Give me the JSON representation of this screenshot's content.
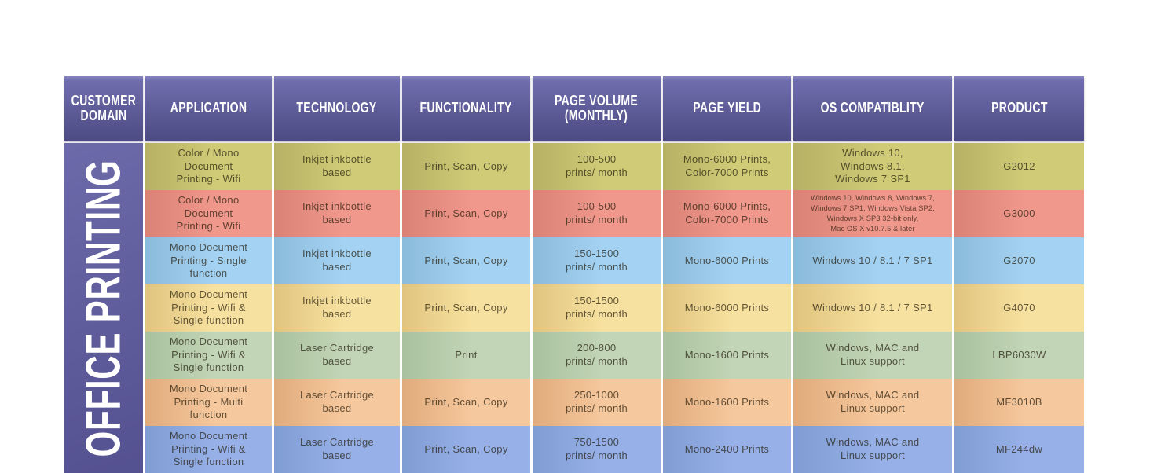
{
  "sidebar": {
    "label": "OFFICE PRINTING"
  },
  "colors": {
    "background": "#ffffff",
    "header_purple_top": "#8886bd",
    "header_purple_mid": "#6f6dac",
    "header_purple_bottom": "#4d4b83",
    "sidebar_purple_light": "#6c6aa9",
    "sidebar_purple_dark": "#545190",
    "header_text": "#ffffff"
  },
  "chart_data": {
    "type": "table",
    "title": "Office Printing product comparison",
    "columns": [
      "CUSTOMER\nDOMAIN",
      "APPLICATION",
      "TECHNOLOGY",
      "FUNCTIONALITY",
      "PAGE VOLUME\n(MONTHLY)",
      "PAGE YIELD",
      "OS COMPATIBLITY",
      "PRODUCT"
    ],
    "customer_domain": "OFFICE PRINTING",
    "rows": [
      {
        "application": "Color / Mono\nDocument\nPrinting - Wifi",
        "technology": "Inkjet inkbottle\nbased",
        "functionality": "Print, Scan, Copy",
        "page_volume": "100-500\nprints/ month",
        "page_yield": "Mono-6000 Prints,\nColor-7000 Prints",
        "os_compatibility": "Windows 10,\nWindows 8.1,\nWindows 7 SP1",
        "product": "G2012",
        "row_color": "#cfcb77",
        "row_color_dark": "#b6b164",
        "os_small_text": false
      },
      {
        "application": "Color / Mono\nDocument\nPrinting - Wifi",
        "technology": "Inkjet inkbottle\nbased",
        "functionality": "Print, Scan, Copy",
        "page_volume": "100-500\nprints/ month",
        "page_yield": "Mono-6000 Prints,\nColor-7000 Prints",
        "os_compatibility": "Windows 10, Windows 8, Windows 7,\nWindows 7 SP1, Windows Vista SP2,\nWindows X SP3 32-bit only,\nMac OS X v10.7.5 & later",
        "product": "G3000",
        "row_color": "#f0988c",
        "row_color_dark": "#db8276",
        "os_small_text": true
      },
      {
        "application": "Mono Document\nPrinting - Single\nfunction",
        "technology": "Inkjet inkbottle\nbased",
        "functionality": "Print, Scan, Copy",
        "page_volume": "150-1500\nprints/ month",
        "page_yield": "Mono-6000 Prints",
        "os_compatibility": "Windows 10 / 8.1 / 7 SP1",
        "product": "G2070",
        "row_color": "#a4d2f2",
        "row_color_dark": "#8bbbdb",
        "os_small_text": false
      },
      {
        "application": "Mono Document\nPrinting - Wifi &\nSingle function",
        "technology": "Inkjet inkbottle\nbased",
        "functionality": "Print, Scan, Copy",
        "page_volume": "150-1500\nprints/ month",
        "page_yield": "Mono-6000 Prints",
        "os_compatibility": "Windows 10 / 8.1 / 7 SP1",
        "product": "G4070",
        "row_color": "#f7e1a0",
        "row_color_dark": "#e0c47e",
        "os_small_text": false
      },
      {
        "application": "Mono Document\nPrinting - Wifi &\nSingle function",
        "technology": "Laser Cartridge\nbased",
        "functionality": "Print",
        "page_volume": "200-800\nprints/ month",
        "page_yield": "Mono-1600 Prints",
        "os_compatibility": "Windows, MAC and\nLinux support",
        "product": "LBP6030W",
        "row_color": "#c2d5b6",
        "row_color_dark": "#a9c19e",
        "os_small_text": false
      },
      {
        "application": "Mono Document\nPrinting - Multi\nfunction",
        "technology": "Laser Cartridge\nbased",
        "functionality": "Print, Scan, Copy",
        "page_volume": "250-1000\nprints/ month",
        "page_yield": "Mono-1600 Prints",
        "os_compatibility": "Windows, MAC and\nLinux support",
        "product": "MF3010B",
        "row_color": "#f6c89d",
        "row_color_dark": "#e0ab7c",
        "os_small_text": false
      },
      {
        "application": "Mono Document\nPrinting - Wifi &\nSingle function",
        "technology": "Laser Cartridge\nbased",
        "functionality": "Print, Scan, Copy",
        "page_volume": "750-1500\nprints/ month",
        "page_yield": "Mono-2400 Prints",
        "os_compatibility": "Windows, MAC and\nLinux support",
        "product": "MF244dw",
        "row_color": "#97b1e8",
        "row_color_dark": "#7f9cd3",
        "os_small_text": false
      }
    ]
  }
}
